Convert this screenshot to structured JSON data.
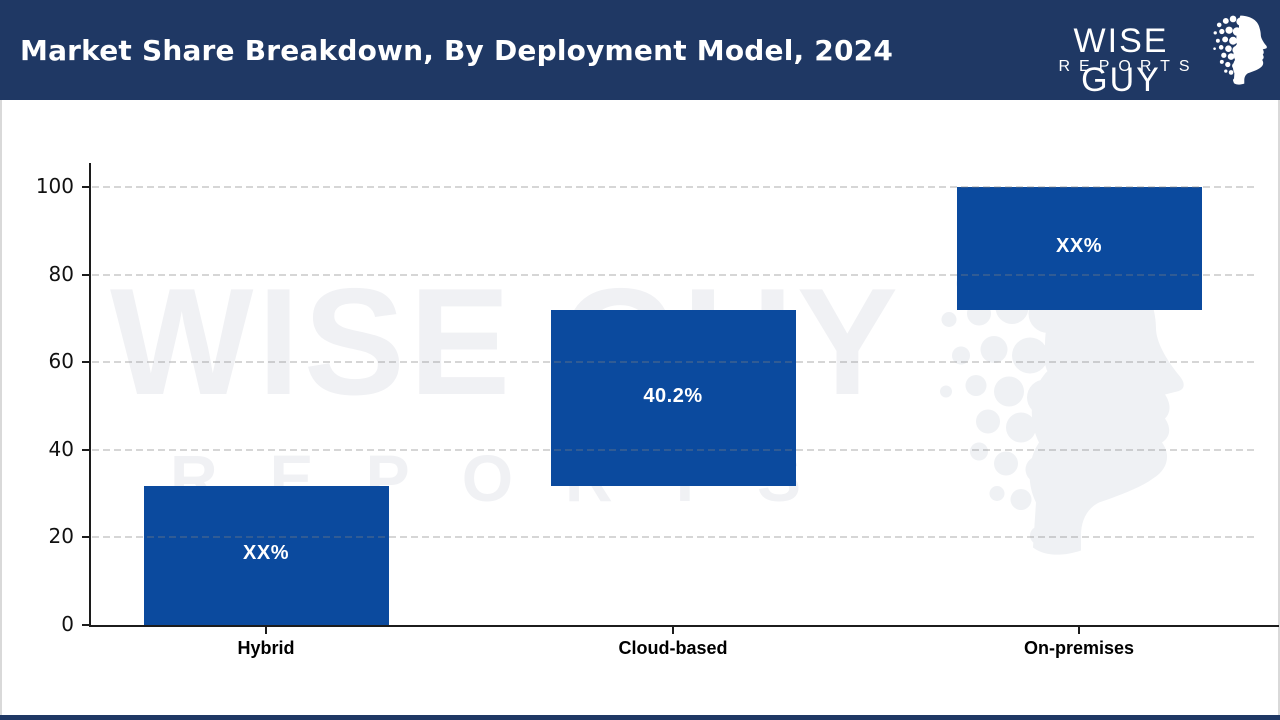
{
  "header": {
    "title": "Market Share Breakdown, By Deployment Model, 2024",
    "logo": {
      "line1": "WISE GUY",
      "line2": "REPORTS"
    }
  },
  "watermark": {
    "line1": "WISE GUY",
    "line2": "REPORTS"
  },
  "chart_data": {
    "type": "bar",
    "subtype": "floating-waterfall-stacked",
    "title": "Market Share Breakdown, By Deployment Model, 2024",
    "categories": [
      "Hybrid",
      "Cloud-based",
      "On-premises"
    ],
    "segments": [
      {
        "category": "Hybrid",
        "from": 0,
        "to": 31.8,
        "label": "XX%"
      },
      {
        "category": "Cloud-based",
        "from": 31.8,
        "to": 72,
        "label": "40.2%"
      },
      {
        "category": "On-premises",
        "from": 72,
        "to": 100,
        "label": "XX%"
      }
    ],
    "yticks": [
      0,
      20,
      40,
      60,
      80,
      100
    ],
    "ylim": [
      0,
      105.5
    ],
    "xlabel": "",
    "ylabel": "",
    "grid": "horizontal-dashed",
    "legend": "none",
    "bar_color": "#0b4a9e",
    "bar_label_color": "#ffffff"
  },
  "colors": {
    "header_bg": "#1f3864",
    "footer_bg": "#1f3864",
    "bar": "#0b4a9e",
    "watermark": "#f0f1f4",
    "axis": "#1c1c1c"
  }
}
